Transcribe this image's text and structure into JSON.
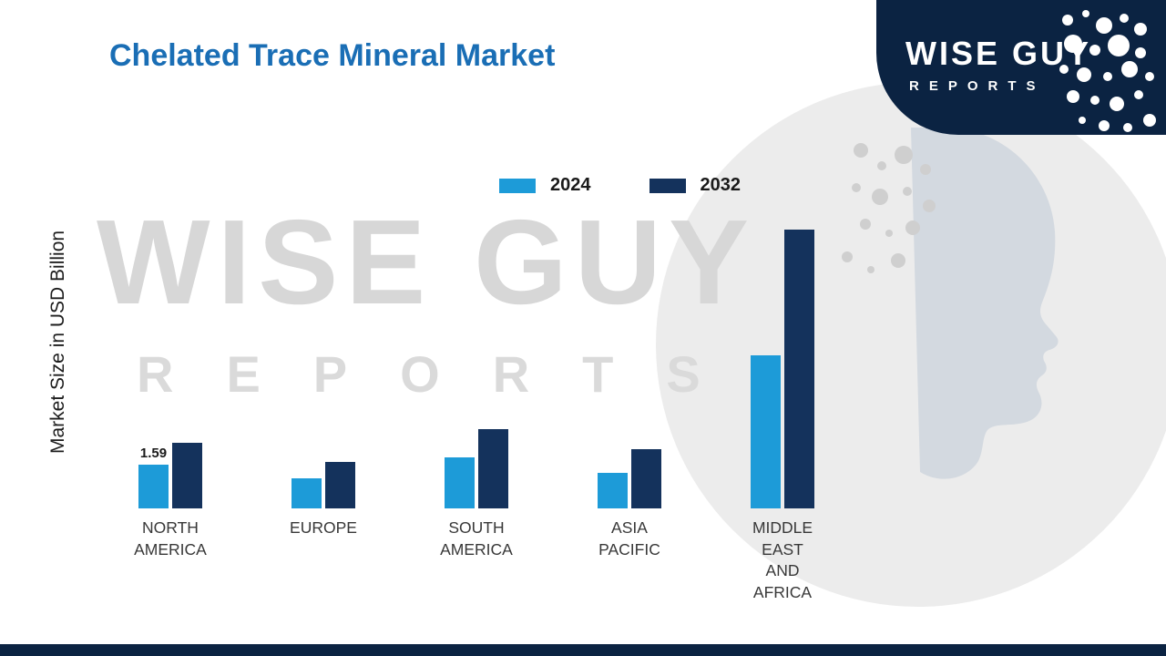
{
  "page": {
    "title": "Chelated Trace Mineral Market",
    "ylabel": "Market Size in USD Billion"
  },
  "logo": {
    "line1": "WISE GUY",
    "line2": "REPORTS"
  },
  "watermark": {
    "line1": "WISE GUY",
    "line2": "REPORTS"
  },
  "colors": {
    "title_blue": "#1a6eb5",
    "series_2024": "#1d9bd8",
    "series_2032": "#14325c",
    "corner_navy": "#0b2342"
  },
  "chart_data": {
    "type": "bar",
    "title": "Chelated Trace Mineral Market",
    "xlabel": "",
    "ylabel": "Market Size in USD Billion",
    "ylim": [
      0,
      11
    ],
    "grid": false,
    "legend_position": "top",
    "categories": [
      "NORTH AMERICA",
      "EUROPE",
      "SOUTH AMERICA",
      "ASIA PACIFIC",
      "MIDDLE EAST AND AFRICA"
    ],
    "categories_display": [
      [
        "NORTH",
        "AMERICA"
      ],
      [
        "EUROPE"
      ],
      [
        "SOUTH",
        "AMERICA"
      ],
      [
        "ASIA",
        "PACIFIC"
      ],
      [
        "MIDDLE",
        "EAST",
        "AND",
        "AFRICA"
      ]
    ],
    "series": [
      {
        "name": "2024",
        "color": "#1d9bd8",
        "values": [
          1.59,
          1.1,
          1.85,
          1.3,
          5.6
        ]
      },
      {
        "name": "2032",
        "color": "#14325c",
        "values": [
          2.4,
          1.7,
          2.9,
          2.15,
          10.2
        ]
      }
    ],
    "annotations": [
      {
        "category": 0,
        "series": 0,
        "text": "1.59"
      }
    ]
  }
}
